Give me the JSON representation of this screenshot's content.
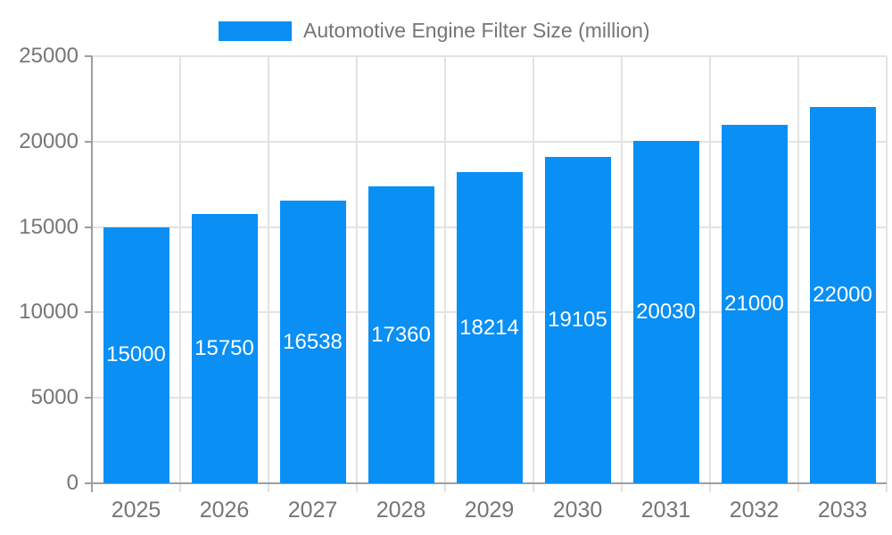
{
  "legend": {
    "label": "Automotive Engine Filter Size (million)"
  },
  "chart_data": {
    "type": "bar",
    "title": "Automotive Engine Filter Size (million)",
    "categories": [
      "2025",
      "2026",
      "2027",
      "2028",
      "2029",
      "2030",
      "2031",
      "2032",
      "2033"
    ],
    "series": [
      {
        "name": "Automotive Engine Filter Size (million)",
        "values": [
          15000,
          15750,
          16538,
          17360,
          18214,
          19105,
          20030,
          21000,
          22000
        ]
      }
    ],
    "xlabel": "",
    "ylabel": "",
    "ylim": [
      0,
      25000
    ],
    "yticks": [
      0,
      5000,
      10000,
      15000,
      20000,
      25000
    ],
    "grid": true,
    "legend_position": "top",
    "value_labels_position": "inside-center"
  },
  "colors": {
    "bar": "#0a8ff5",
    "gridline": "#e3e3e3",
    "axis": "#9e9e9e",
    "text": "#757575",
    "value_label": "#ffffff"
  }
}
